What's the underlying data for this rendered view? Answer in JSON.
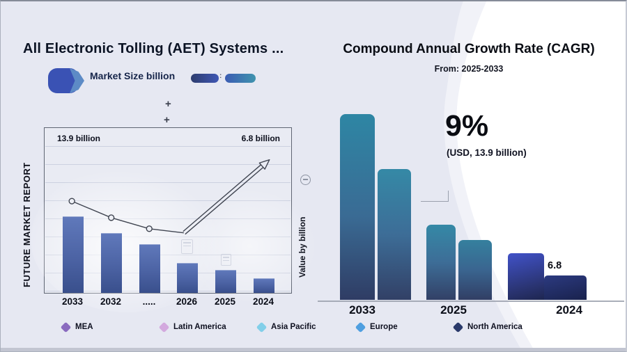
{
  "left_panel": {
    "title": "All Electronic Tolling (AET) Systems ...",
    "market_size_label": "Market Size billion",
    "ratio_separator": ":",
    "plus_top": "+",
    "plus_bottom": "+",
    "value_start": "13.9 billion",
    "value_end": "6.8 billion",
    "watermark": "FUTURE MARKET REPORT",
    "x_labels": [
      "2033",
      "2032",
      ".....",
      "2026",
      "2025",
      "2024"
    ]
  },
  "right_panel": {
    "title": "Compound Annual Growth Rate (CAGR)",
    "subtitle": "From: 2025-2033",
    "cagr": "9%",
    "cagr_note": "(USD, 13.9 billion)",
    "axis_label": "Value by billion",
    "value_label": "6.8",
    "x_labels": [
      "2033",
      "2025",
      "2024"
    ]
  },
  "legend": {
    "items": [
      {
        "label": "MEA",
        "color": "#8a6bbf"
      },
      {
        "label": "Latin America",
        "color": "#d3a9de"
      },
      {
        "label": "Asia Pacific",
        "color": "#82cfe9"
      },
      {
        "label": "Europe",
        "color": "#4f9fe0"
      },
      {
        "label": "North America",
        "color": "#2a3a6b"
      }
    ]
  },
  "colors": {
    "background": "#e6e8f2",
    "diagonal_band": "#ffffff",
    "left_bar_top": "#6079bb",
    "left_bar_bottom": "#394f8c",
    "right_bar_teal_top": "#2e86a4",
    "right_bar_navy_bottom": "#2f3c64",
    "right_bar_blue_top": "#4152c8",
    "right_bar_dark_navy": "#19224d"
  },
  "chart_data": [
    {
      "type": "bar",
      "title": "All Electronic Tolling (AET) Systems ...",
      "legend": [
        "Market Size billion"
      ],
      "categories": [
        "2033",
        "2032",
        ".....",
        "2026",
        "2025",
        "2024"
      ],
      "series": [
        {
          "name": "Market Size billion",
          "values": [
            13.9,
            10.9,
            8.9,
            5.4,
            4.2,
            2.7
          ]
        }
      ],
      "annotations": [
        "13.9 billion",
        "6.8 billion"
      ],
      "overlay": "declining trend line with circle markers over 2033-2026, then double-line arrow rising toward 6.8 billion label",
      "grid": true,
      "ylabel": ""
    },
    {
      "type": "bar",
      "title": "Compound Annual Growth Rate (CAGR)",
      "subtitle": "From: 2025-2033",
      "categories": [
        "2033",
        "2025",
        "2024"
      ],
      "series": [
        {
          "name": "bar-a",
          "values": [
            13.9,
            5.6,
            3.5
          ]
        },
        {
          "name": "bar-b",
          "values": [
            9.8,
            4.5,
            1.8
          ]
        }
      ],
      "annotations": [
        "9%",
        "(USD, 13.9 billion)",
        "6.8"
      ],
      "ylabel": "Value by billion",
      "grid": false
    }
  ]
}
